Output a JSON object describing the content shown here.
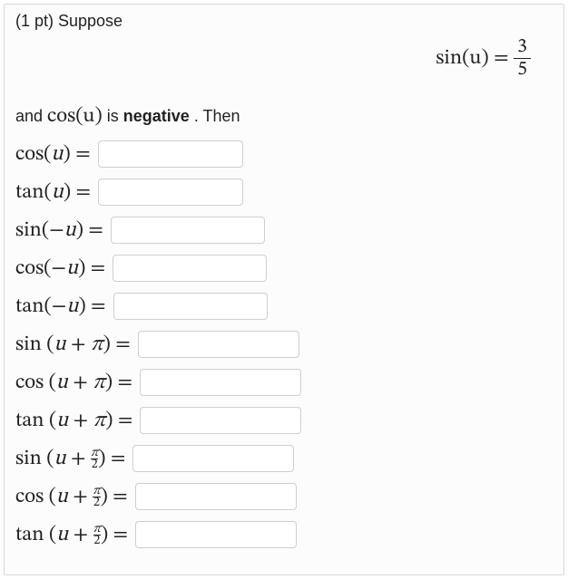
{
  "heading": "(1 pt) Suppose",
  "given": {
    "lhs": "sin(u) =",
    "frac_num": "3",
    "frac_den": "5"
  },
  "then": {
    "pre": "and ",
    "cos": "cos(u)",
    "mid": " is ",
    "neg": "negative",
    "post": ". Then"
  },
  "rows": [
    {
      "lhs_html": "cos(<i>u</i>) =",
      "width": "w-a"
    },
    {
      "lhs_html": "tan(<i>u</i>) =",
      "width": "w-a"
    },
    {
      "lhs_html": "sin(−<i>u</i>) =",
      "width": "w-b"
    },
    {
      "lhs_html": "cos(−<i>u</i>) =",
      "width": "w-b"
    },
    {
      "lhs_html": "tan(−<i>u</i>) =",
      "width": "w-b"
    },
    {
      "lhs_html": "sin (<i>u</i> + <i>π</i>) =",
      "width": "w-c"
    },
    {
      "lhs_html": "cos (<i>u</i> + <i>π</i>) =",
      "width": "w-c"
    },
    {
      "lhs_html": "tan (<i>u</i> + <i>π</i>) =",
      "width": "w-c"
    },
    {
      "lhs_html": "sin (<i>u</i> + <span class=\"sfrac\"><span><i>π</i></span><span class=\"den\">2</span></span>) =",
      "width": "w-d"
    },
    {
      "lhs_html": "cos (<i>u</i> + <span class=\"sfrac\"><span><i>π</i></span><span class=\"den\">2</span></span>) =",
      "width": "w-d"
    },
    {
      "lhs_html": "tan (<i>u</i> + <span class=\"sfrac\"><span><i>π</i></span><span class=\"den\">2</span></span>) =",
      "width": "w-d"
    }
  ]
}
